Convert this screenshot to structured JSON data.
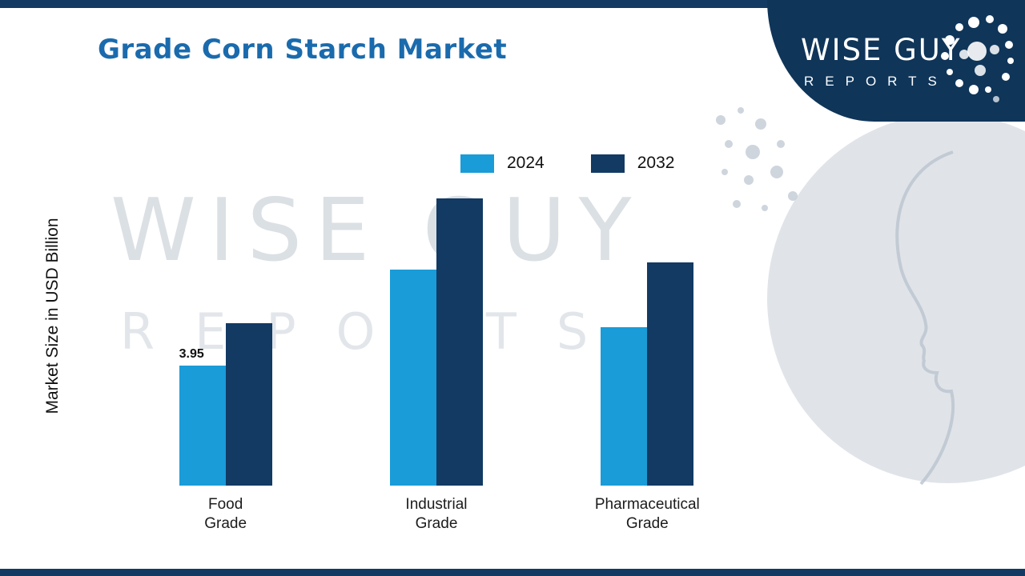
{
  "page": {
    "title": "Grade Corn Starch Market"
  },
  "logo": {
    "line1": "WISE GUY",
    "line2": "REPORTS"
  },
  "watermark": {
    "line1": "WISE GUY",
    "line2": "REPORTS"
  },
  "colors": {
    "navy": "#123a63",
    "light_blue": "#1a9cd8",
    "title_blue": "#1a6bad"
  },
  "chart_data": {
    "type": "bar",
    "title": "Grade Corn Starch Market",
    "xlabel": "",
    "ylabel": "Market Size in USD Billion",
    "categories": [
      "Food Grade",
      "Industrial Grade",
      "Pharmaceutical Grade"
    ],
    "series": [
      {
        "name": "2024",
        "color": "#1a9cd8",
        "values": [
          3.95,
          7.1,
          5.2
        ],
        "value_labels": [
          "3.95",
          "",
          ""
        ]
      },
      {
        "name": "2032",
        "color": "#123a63",
        "values": [
          5.35,
          9.45,
          7.35
        ],
        "value_labels": [
          "",
          "",
          ""
        ]
      }
    ],
    "ylim": [
      0,
      10
    ],
    "grid": false,
    "axes_visible": false,
    "legend_position": "top"
  }
}
